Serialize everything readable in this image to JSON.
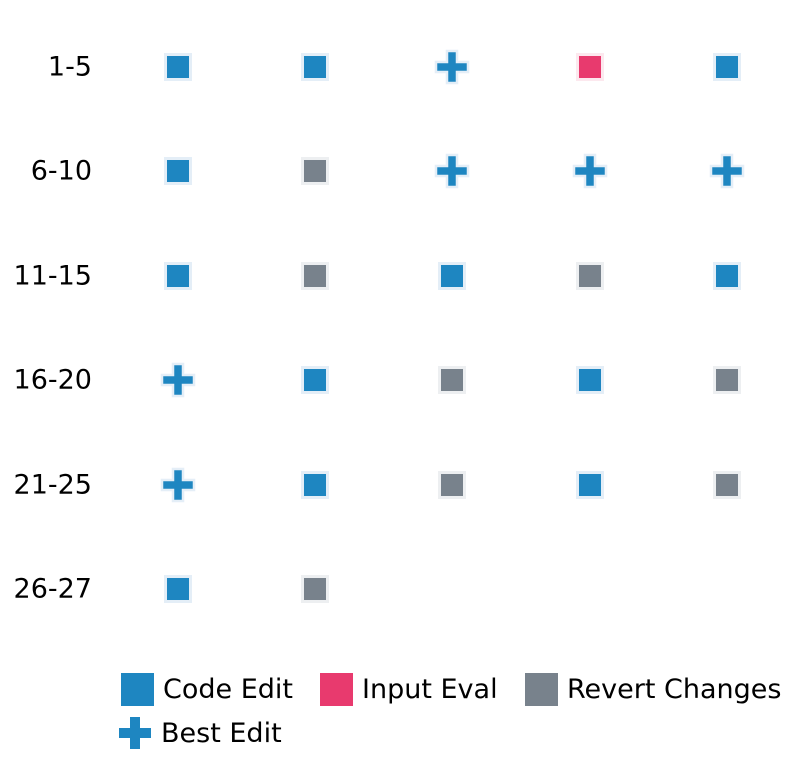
{
  "chart_data": {
    "type": "scatter",
    "title": "",
    "xlabel": "",
    "ylabel": "",
    "grid": false,
    "axes_visible": false,
    "legend_position": "bottom",
    "y_categories": [
      "1-5",
      "6-10",
      "11-15",
      "16-20",
      "21-25",
      "26-27"
    ],
    "columns_per_row": 5,
    "rows": [
      {
        "label": "1-5",
        "markers": [
          "code_edit",
          "code_edit",
          "best_edit",
          "input_eval",
          "code_edit"
        ]
      },
      {
        "label": "6-10",
        "markers": [
          "code_edit",
          "revert_changes",
          "best_edit",
          "best_edit",
          "best_edit"
        ]
      },
      {
        "label": "11-15",
        "markers": [
          "code_edit",
          "revert_changes",
          "code_edit",
          "revert_changes",
          "code_edit"
        ]
      },
      {
        "label": "16-20",
        "markers": [
          "best_edit",
          "code_edit",
          "revert_changes",
          "code_edit",
          "revert_changes"
        ]
      },
      {
        "label": "21-25",
        "markers": [
          "best_edit",
          "code_edit",
          "revert_changes",
          "code_edit",
          "revert_changes"
        ]
      },
      {
        "label": "26-27",
        "markers": [
          "code_edit",
          "revert_changes"
        ]
      }
    ],
    "marker_shapes": {
      "code_edit": "square",
      "input_eval": "square",
      "revert_changes": "square",
      "best_edit": "plus"
    }
  },
  "legend": {
    "items": [
      {
        "id": "code_edit",
        "label": "Code Edit",
        "shape": "square",
        "color": "#1e86c1"
      },
      {
        "id": "input_eval",
        "label": "Input Eval",
        "shape": "square",
        "color": "#e83a6e"
      },
      {
        "id": "revert_changes",
        "label": "Revert Changes",
        "shape": "square",
        "color": "#78828c"
      },
      {
        "id": "best_edit",
        "label": "Best Edit",
        "shape": "plus",
        "color": "#1e86c1"
      }
    ]
  },
  "colors": {
    "code_edit": {
      "fill": "#1e86c1",
      "edge": "#e4eef7"
    },
    "input_eval": {
      "fill": "#e83a6e",
      "edge": "#fce8ee"
    },
    "revert_changes": {
      "fill": "#78828c",
      "edge": "#edeff1"
    },
    "best_edit": {
      "fill": "#1e86c1",
      "edge": "#e4eef7"
    },
    "text": "#000000",
    "background": "#ffffff"
  }
}
